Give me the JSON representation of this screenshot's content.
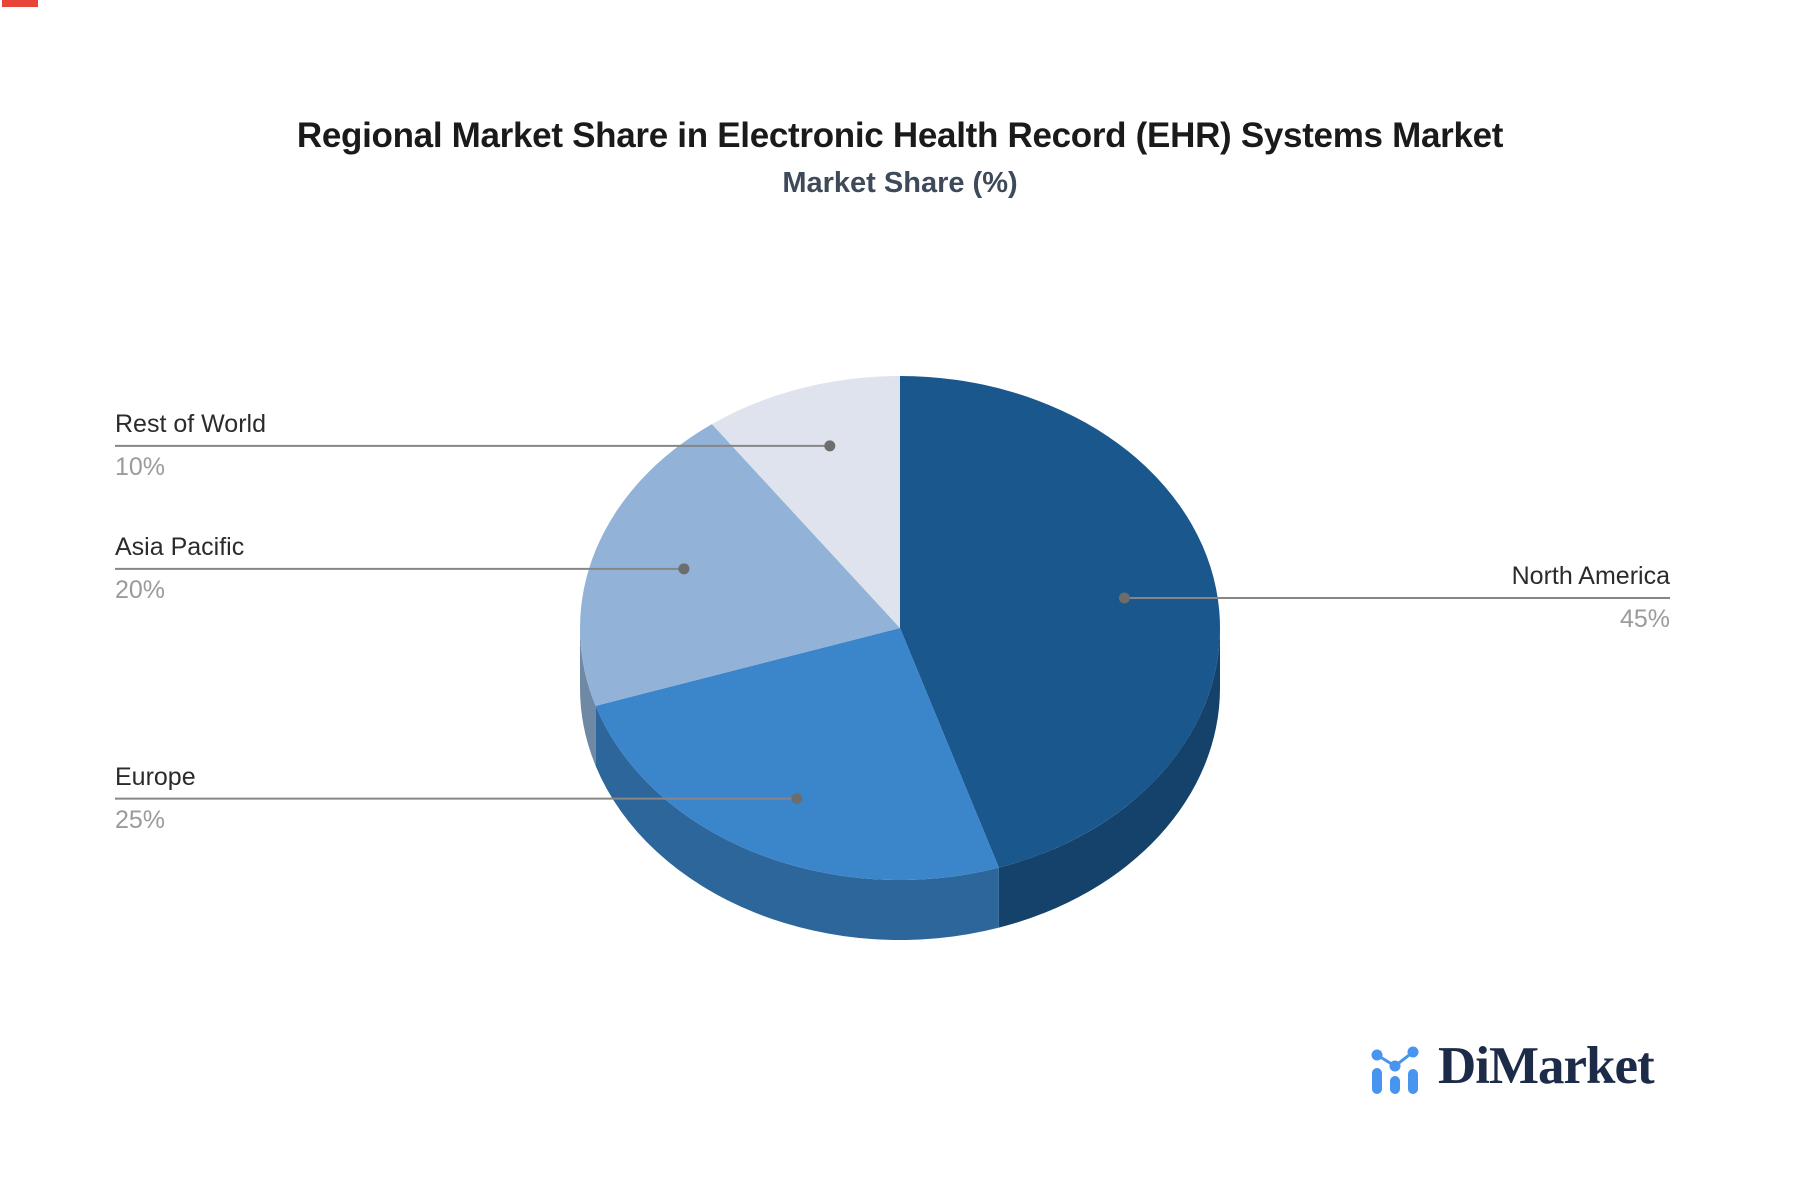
{
  "title": "Regional Market Share in Electronic Health Record (EHR) Systems Market",
  "subtitle": "Market Share (%)",
  "chart_data": {
    "type": "pie",
    "title": "Regional Market Share in Electronic Health Record (EHR) Systems Market",
    "subtitle": "Market Share (%)",
    "unit": "%",
    "style": "3d-extruded-pie",
    "start_angle": "12-oclock",
    "direction": "clockwise",
    "legend_position": "callout-labels",
    "slices": [
      {
        "label": "North America",
        "value": 45,
        "value_label": "45%",
        "color": "#1A578D"
      },
      {
        "label": "Europe",
        "value": 25,
        "value_label": "25%",
        "color": "#3B86CB"
      },
      {
        "label": "Asia Pacific",
        "value": 20,
        "value_label": "20%",
        "color": "#92B3D7"
      },
      {
        "label": "Rest of World",
        "value": 10,
        "value_label": "10%",
        "color": "#DEE3ED"
      }
    ]
  },
  "callout_style": {
    "line_color": "#868686",
    "dot_color": "#6D6D6D",
    "label_color": "#2B2B2B",
    "value_color": "#9B9B9B"
  },
  "text_colors": {
    "title": "#1A1A1A",
    "subtitle": "#3E4A59"
  },
  "brand": {
    "name": "DiMarket",
    "icon": "bar-chart-trend-icon",
    "icon_color": "#4795EE",
    "text_color": "#1C2B47"
  }
}
